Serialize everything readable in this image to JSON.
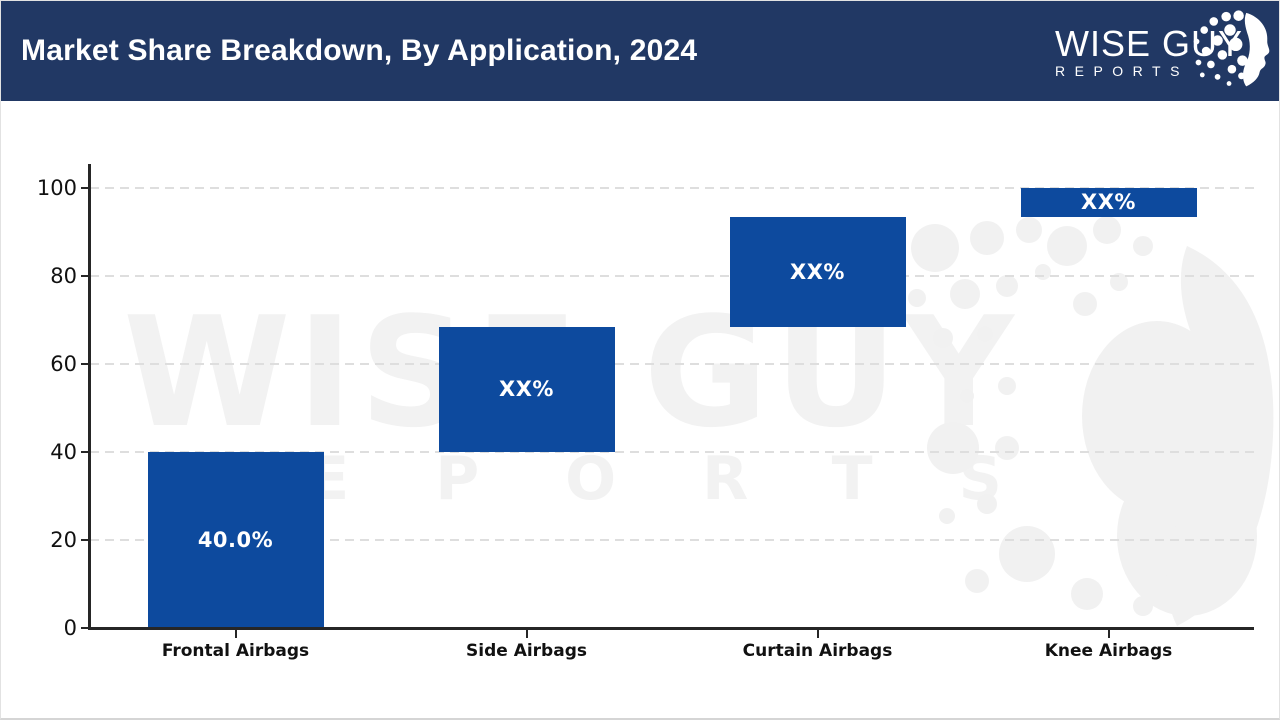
{
  "header": {
    "title": "Market Share Breakdown, By Application, 2024",
    "logo": {
      "brand_top": "WISE GUY",
      "brand_bottom": "REPORTS",
      "face_icon": "dotted-face-profile"
    }
  },
  "watermark": {
    "line1": "WISE GUY",
    "line2": "REPORTS",
    "face_icon": "dotted-face-profile"
  },
  "colors": {
    "header_bg": "#213864",
    "bar": "#0d4a9e",
    "grid": "#dedede",
    "axis": "#262626",
    "watermark": "#f2f2f2"
  },
  "chart_data": {
    "type": "bar",
    "subtype": "waterfall",
    "title": "Market Share Breakdown, By Application, 2024",
    "xlabel": "",
    "ylabel": "",
    "categories": [
      "Frontal Airbags",
      "Side Airbags",
      "Curtain Airbags",
      "Knee Airbags"
    ],
    "series": [
      {
        "name": "Market Share (%)",
        "starts": [
          0,
          40,
          68.5,
          93.5
        ],
        "ends": [
          40,
          68.5,
          93.5,
          100
        ],
        "values": [
          40,
          28.5,
          25,
          6.5
        ]
      }
    ],
    "bar_labels": [
      "40.0%",
      "XX%",
      "XX%",
      "XX%"
    ],
    "yticks": [
      0,
      20,
      40,
      60,
      80,
      100
    ],
    "ylim": [
      0,
      105.5
    ],
    "grid": true,
    "grid_style": "dashed",
    "legend": "none",
    "bar_color": "#0d4a9e"
  }
}
